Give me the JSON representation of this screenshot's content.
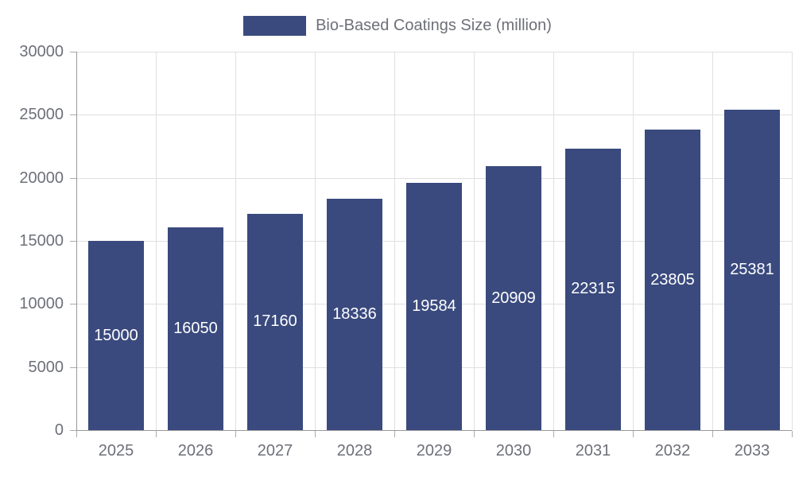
{
  "legend": {
    "label": "Bio-Based Coatings Size (million)"
  },
  "chart_data": {
    "type": "bar",
    "title": "Bio-Based Coatings Size (million)",
    "categories": [
      "2025",
      "2026",
      "2027",
      "2028",
      "2029",
      "2030",
      "2031",
      "2032",
      "2033"
    ],
    "values": [
      15000,
      16050,
      17160,
      18336,
      19584,
      20909,
      22315,
      23805,
      25381
    ],
    "series_name": "Bio-Based Coatings Size (million)",
    "xlabel": "",
    "ylabel": "",
    "ylim": [
      0,
      30000
    ],
    "yticks": [
      0,
      5000,
      10000,
      15000,
      20000,
      25000,
      30000
    ],
    "grid": true,
    "legend_position": "top",
    "value_labels": "inside-center"
  },
  "colors": {
    "bar_fill": "#3a4a7e",
    "bar_value_text": "#ffffff",
    "grid_line": "#e0e0e3",
    "axis_line": "#999999",
    "tick_mark": "#ababab",
    "axis_text": "#6e7079",
    "background": "#ffffff"
  }
}
